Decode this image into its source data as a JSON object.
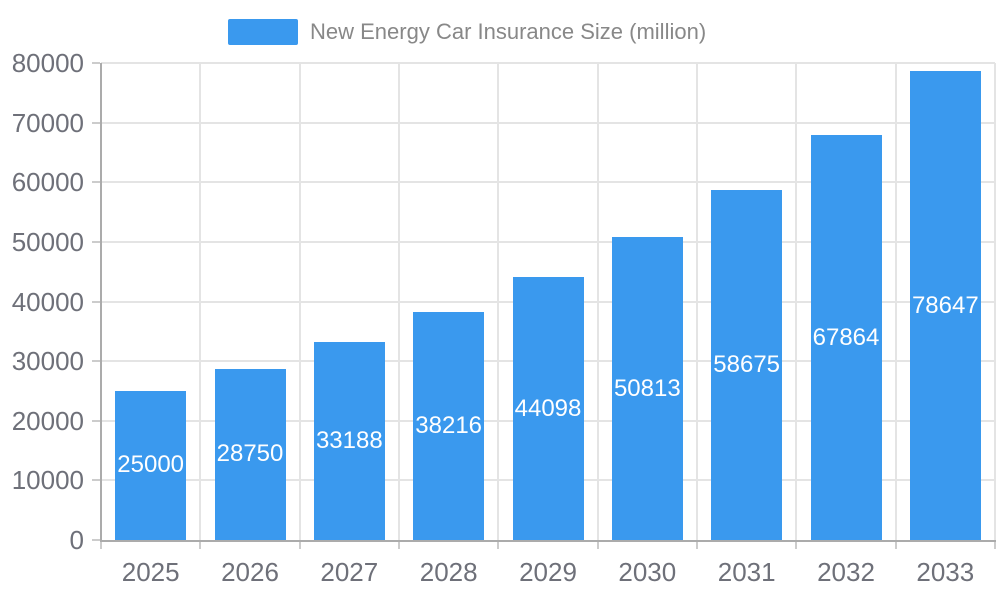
{
  "legend": {
    "label": "New Energy Car Insurance Size (million)"
  },
  "colors": {
    "bar": "#3a99ee",
    "bar_label_text": "#ffffff",
    "axis_line": "#ababab",
    "gridline": "#e4e4e4",
    "tick": "#cccccc",
    "axis_text": "#6e7079",
    "legend_text": "#888888"
  },
  "chart_data": {
    "type": "bar",
    "title": "New Energy Car Insurance Size (million)",
    "series_name": "New Energy Car Insurance Size (million)",
    "categories": [
      "2025",
      "2026",
      "2027",
      "2028",
      "2029",
      "2030",
      "2031",
      "2032",
      "2033"
    ],
    "values": [
      25000,
      28750,
      33188,
      38216,
      44098,
      50813,
      58675,
      67864,
      78647
    ],
    "value_labels": [
      "25000",
      "28750",
      "33188",
      "38216",
      "44098",
      "50813",
      "58675",
      "67864",
      "78647"
    ],
    "xlabel": "",
    "ylabel": "",
    "ylim": [
      0,
      80000
    ],
    "y_ticks": [
      0,
      10000,
      20000,
      30000,
      40000,
      50000,
      60000,
      70000,
      80000
    ],
    "y_tick_labels": [
      "0",
      "10000",
      "20000",
      "30000",
      "40000",
      "50000",
      "60000",
      "70000",
      "80000"
    ],
    "grid": true,
    "value_label_position": "inside-center",
    "legend_position": "top"
  }
}
